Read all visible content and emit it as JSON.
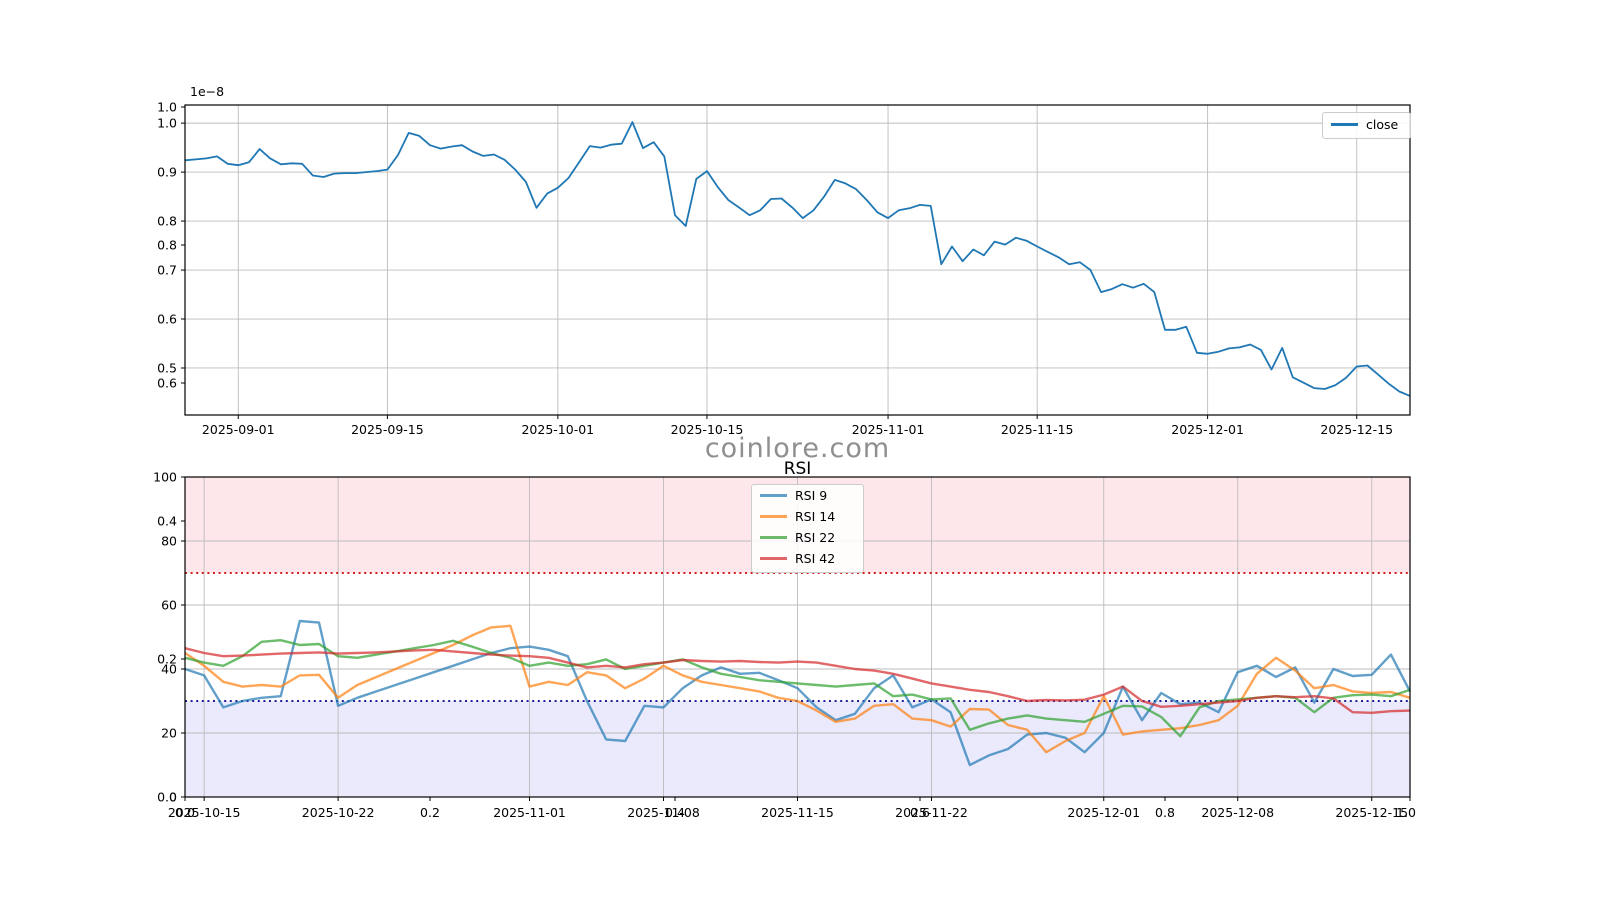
{
  "watermark": "coinlore.com",
  "colors": {
    "close": "#1f77b4",
    "rsi9": "#1f77b4",
    "rsi14": "#ff7f0e",
    "rsi22": "#2ca02c",
    "rsi42": "#d62728",
    "grid": "#bcbcbc",
    "spine": "#000000",
    "overbought_band": "rgba(240,60,80,0.12)",
    "oversold_band": "rgba(80,80,230,0.12)",
    "overbought_line": "#cc0000",
    "oversold_line": "#00008b",
    "watermark_color": "#8f8f8f"
  },
  "chart_data": [
    {
      "id": "price",
      "type": "line",
      "grid": true,
      "legend_position": "upper right",
      "offset_label": "1e−8",
      "ylim": [
        0.404,
        1.037
      ],
      "yticks": [
        {
          "label": "1.0",
          "value": 1.0
        },
        {
          "label": "0.9",
          "value": 0.9
        },
        {
          "label": "0.8",
          "value": 0.8
        },
        {
          "label": "0.7",
          "value": 0.7
        },
        {
          "label": "0.6",
          "value": 0.6
        },
        {
          "label": "0.5",
          "value": 0.5
        }
      ],
      "overlay_yticks": [
        {
          "label": "1.0",
          "value": 1.0
        },
        {
          "label": "0.8",
          "value": 0.8
        },
        {
          "label": "0.6",
          "value": 0.6
        }
      ],
      "xticks": [
        {
          "label": "2025-09-01",
          "index": 5
        },
        {
          "label": "2025-09-15",
          "index": 19
        },
        {
          "label": "2025-10-01",
          "index": 35
        },
        {
          "label": "2025-10-15",
          "index": 49
        },
        {
          "label": "2025-11-01",
          "index": 66
        },
        {
          "label": "2025-11-15",
          "index": 80
        },
        {
          "label": "2025-12-01",
          "index": 96
        },
        {
          "label": "2025-12-15",
          "index": 110
        }
      ],
      "series": [
        {
          "name": "close",
          "color_key": "close",
          "opacity": 1.0,
          "width": 1.8,
          "values": [
            0.924,
            0.926,
            0.928,
            0.932,
            0.917,
            0.914,
            0.92,
            0.947,
            0.928,
            0.916,
            0.918,
            0.917,
            0.893,
            0.89,
            0.897,
            0.898,
            0.898,
            0.9,
            0.902,
            0.905,
            0.935,
            0.98,
            0.974,
            0.955,
            0.948,
            0.952,
            0.955,
            0.942,
            0.933,
            0.936,
            0.925,
            0.905,
            0.88,
            0.827,
            0.856,
            0.868,
            0.888,
            0.92,
            0.953,
            0.95,
            0.956,
            0.958,
            1.002,
            0.949,
            0.961,
            0.932,
            0.812,
            0.79,
            0.886,
            0.902,
            0.87,
            0.843,
            0.828,
            0.812,
            0.822,
            0.845,
            0.846,
            0.828,
            0.806,
            0.822,
            0.85,
            0.884,
            0.877,
            0.865,
            0.843,
            0.818,
            0.806,
            0.822,
            0.826,
            0.833,
            0.831,
            0.712,
            0.748,
            0.718,
            0.742,
            0.73,
            0.758,
            0.752,
            0.766,
            0.76,
            0.748,
            0.737,
            0.726,
            0.712,
            0.716,
            0.7,
            0.655,
            0.661,
            0.671,
            0.664,
            0.672,
            0.655,
            0.578,
            0.578,
            0.584,
            0.531,
            0.529,
            0.533,
            0.54,
            0.542,
            0.548,
            0.537,
            0.497,
            0.541,
            0.481,
            0.47,
            0.459,
            0.457,
            0.465,
            0.48,
            0.503,
            0.505,
            0.487,
            0.468,
            0.452,
            0.443
          ]
        }
      ]
    },
    {
      "id": "rsi",
      "type": "line",
      "grid": true,
      "title": "RSI",
      "legend_position": "upper center",
      "ylim": [
        0,
        100
      ],
      "yticks": [
        {
          "label": "100",
          "value": 100
        },
        {
          "label": "80",
          "value": 80
        },
        {
          "label": "60",
          "value": 60
        },
        {
          "label": "40",
          "value": 40
        },
        {
          "label": "20",
          "value": 20
        },
        {
          "label": "0",
          "value": 0
        }
      ],
      "overlay_yticks": [
        {
          "label": "0.4",
          "value": 0.4
        },
        {
          "label": "0.2",
          "value": 0.2
        },
        {
          "label": "0.0",
          "value": 0.0
        }
      ],
      "xticks": [
        {
          "label": "2025-10-15",
          "index": 1
        },
        {
          "label": "2025-10-22",
          "index": 8
        },
        {
          "label": "2025-11-01",
          "index": 18
        },
        {
          "label": "2025-11-08",
          "index": 25
        },
        {
          "label": "2025-11-15",
          "index": 32
        },
        {
          "label": "2025-11-22",
          "index": 39
        },
        {
          "label": "2025-12-01",
          "index": 48
        },
        {
          "label": "2025-12-08",
          "index": 55
        },
        {
          "label": "2025-12-15",
          "index": 62
        }
      ],
      "overlay_xticks": [
        {
          "label": "0.0",
          "value": 0.0
        },
        {
          "label": "0.2",
          "value": 0.2
        },
        {
          "label": "0.4",
          "value": 0.4
        },
        {
          "label": "0.6",
          "value": 0.6
        },
        {
          "label": "0.8",
          "value": 0.8
        },
        {
          "label": "1.0",
          "value": 1.0
        }
      ],
      "bands": [
        {
          "name": "overbought",
          "from": 70,
          "to": 100,
          "color_key": "overbought_band"
        },
        {
          "name": "oversold",
          "from": 0,
          "to": 30,
          "color_key": "oversold_band"
        }
      ],
      "threshold_lines": [
        {
          "name": "overbought",
          "value": 70,
          "color_key": "overbought_line"
        },
        {
          "name": "oversold",
          "value": 30,
          "color_key": "oversold_line"
        }
      ],
      "series": [
        {
          "name": "RSI 9",
          "color_key": "rsi9",
          "opacity": 0.7,
          "width": 2.4,
          "values": [
            40,
            38,
            28,
            30,
            31,
            31.5,
            55,
            54.5,
            28.5,
            31,
            33,
            35,
            37,
            39,
            41,
            43,
            45,
            46.5,
            47,
            46,
            44,
            30,
            18,
            17.5,
            28.5,
            28,
            34,
            38,
            40.5,
            38.5,
            38.8,
            36.5,
            34,
            28,
            24,
            26,
            34,
            38,
            28,
            30.5,
            26.5,
            10,
            13,
            15,
            19.5,
            20,
            18.5,
            14,
            20,
            34.5,
            24,
            32.5,
            29,
            29.5,
            26.5,
            39,
            41,
            37.5,
            40.5,
            29.5,
            40,
            37.8,
            38.2,
            44.5,
            33
          ]
        },
        {
          "name": "RSI 14",
          "color_key": "rsi14",
          "opacity": 0.7,
          "width": 2.4,
          "values": [
            45,
            41,
            36,
            34.5,
            35,
            34.5,
            38,
            38.2,
            31,
            35,
            37.5,
            40,
            42.5,
            45,
            47.5,
            50.5,
            53,
            53.5,
            34.5,
            36,
            35,
            39,
            38,
            34,
            37,
            41,
            38,
            36,
            35,
            34,
            33,
            31,
            30,
            27,
            23.5,
            24.5,
            28.5,
            29,
            24.5,
            24,
            22,
            27.5,
            27.3,
            22.5,
            21,
            14,
            17.5,
            20,
            31.5,
            19.5,
            20.5,
            21,
            21.5,
            22.5,
            24,
            28.5,
            38.5,
            43.5,
            39.5,
            34,
            35,
            33,
            32.5,
            32.8,
            31
          ]
        },
        {
          "name": "RSI 22",
          "color_key": "rsi22",
          "opacity": 0.7,
          "width": 2.4,
          "values": [
            43.5,
            42,
            41,
            44,
            48.5,
            49,
            47.5,
            47.8,
            44,
            43.5,
            44.5,
            45.5,
            46.5,
            47.5,
            48.8,
            47,
            45,
            43.5,
            41,
            42,
            41,
            41.5,
            43,
            40,
            41,
            42,
            43,
            40.5,
            38.5,
            37.5,
            36.5,
            36,
            35.5,
            35,
            34.5,
            35,
            35.5,
            31.5,
            32,
            30.5,
            30.8,
            21,
            23,
            24.5,
            25.5,
            24.5,
            24,
            23.5,
            26,
            28.5,
            28.3,
            25,
            19,
            28,
            30,
            30.5,
            31,
            31.5,
            31,
            26.5,
            31,
            31.8,
            32,
            31.5,
            33.5
          ]
        },
        {
          "name": "RSI 42",
          "color_key": "rsi42",
          "opacity": 0.7,
          "width": 2.4,
          "values": [
            46.5,
            45,
            44,
            44.2,
            44.5,
            44.8,
            45,
            45.2,
            44.8,
            45,
            45.2,
            45.5,
            45.8,
            46,
            45.5,
            45,
            44.5,
            44.2,
            44,
            43.5,
            42,
            40.5,
            41,
            40.5,
            41.5,
            42,
            42.8,
            42.5,
            42.3,
            42.5,
            42.2,
            42,
            42.3,
            42,
            41,
            40,
            39.5,
            38.5,
            37,
            35.5,
            34.5,
            33.5,
            32.8,
            31.5,
            30,
            30.3,
            30.2,
            30.4,
            32,
            34.5,
            30,
            28.2,
            28.5,
            29,
            29.5,
            30,
            31,
            31.5,
            31.2,
            31.5,
            30.8,
            26.5,
            26.3,
            26.8,
            27
          ]
        }
      ]
    }
  ]
}
